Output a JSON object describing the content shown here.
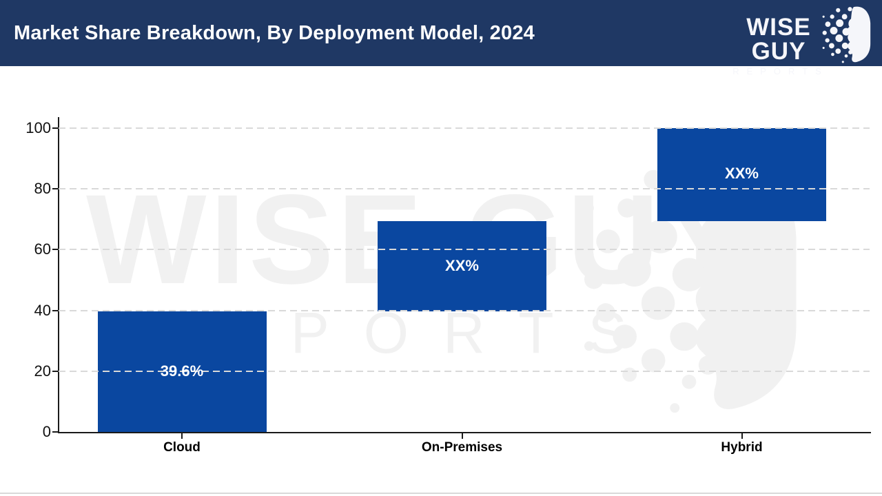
{
  "header": {
    "title": "Market Share Breakdown, By Deployment Model, 2024",
    "bg_color": "#1f3864",
    "logo_line1": "WISE GUY",
    "logo_line2": "REPORTS"
  },
  "watermark": {
    "line1": "WISE GUY",
    "line2": "REPORTS",
    "color": "#f1f1f1"
  },
  "chart_data": {
    "type": "bar",
    "subtype": "stacked-waterfall",
    "title": "Market Share Breakdown, By Deployment Model, 2024",
    "categories": [
      "Cloud",
      "On-Premises",
      "Hybrid"
    ],
    "segments": [
      {
        "category": "Cloud",
        "start": 0,
        "end": 39.6,
        "value": 39.6,
        "label": "39.6%"
      },
      {
        "category": "On-Premises",
        "start": 39.6,
        "end": 69.4,
        "value": 29.8,
        "label": "XX%"
      },
      {
        "category": "Hybrid",
        "start": 69.4,
        "end": 100,
        "value": 30.6,
        "label": "XX%"
      }
    ],
    "ylim": [
      0,
      100
    ],
    "yticks": [
      0,
      20,
      40,
      60,
      80,
      100
    ],
    "xlabel": "",
    "ylabel": "",
    "bar_color": "#0a47a0",
    "grid": {
      "horizontal": true,
      "style": "dashed",
      "color": "#d9d9d9"
    },
    "legend_position": "none"
  }
}
